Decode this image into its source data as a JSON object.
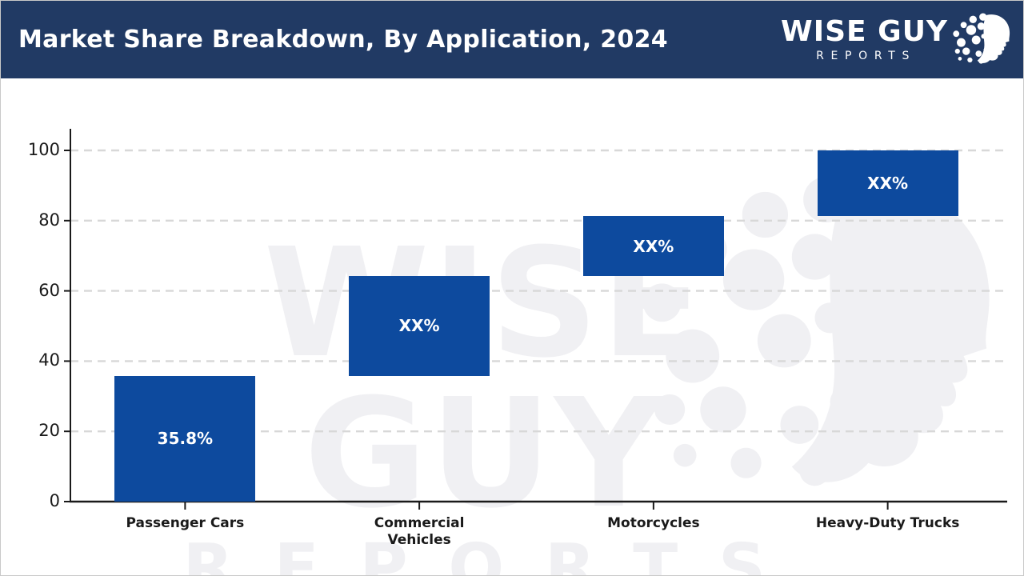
{
  "header": {
    "title": "Market Share Breakdown, By Application, 2024",
    "logo": {
      "line1": "WISE GUY",
      "line2": "REPORTS"
    }
  },
  "watermark": {
    "line1": "WISE GUY",
    "line2": "REPORTS"
  },
  "colors": {
    "header_background": "#213a64",
    "bar_fill": "#0d4a9e",
    "bar_label_text": "#ffffff",
    "axis_text": "#1a1a1a",
    "gridline": "#d8d8d8",
    "watermark": "#f0f0f3",
    "page_background": "#ffffff"
  },
  "chart_data": {
    "type": "bar",
    "subtype": "waterfall",
    "title": "Market Share Breakdown, By Application, 2024",
    "categories": [
      "Passenger Cars",
      "Commercial\nVehicles",
      "Motorcycles",
      "Heavy-Duty Trucks"
    ],
    "bars": [
      {
        "category": "Passenger Cars",
        "label": "35.8%",
        "start": 0,
        "end": 35.8
      },
      {
        "category": "Commercial\nVehicles",
        "label": "XX%",
        "start": 35.8,
        "end": 64.2
      },
      {
        "category": "Motorcycles",
        "label": "XX%",
        "start": 64.2,
        "end": 81.3
      },
      {
        "category": "Heavy-Duty Trucks",
        "label": "XX%",
        "start": 81.3,
        "end": 100
      }
    ],
    "ylabel": "",
    "xlabel": "",
    "yticks": [
      0,
      20,
      40,
      60,
      80,
      100
    ],
    "ylim": [
      0,
      106
    ],
    "grid": "horizontal-dashed",
    "legend": "none"
  }
}
